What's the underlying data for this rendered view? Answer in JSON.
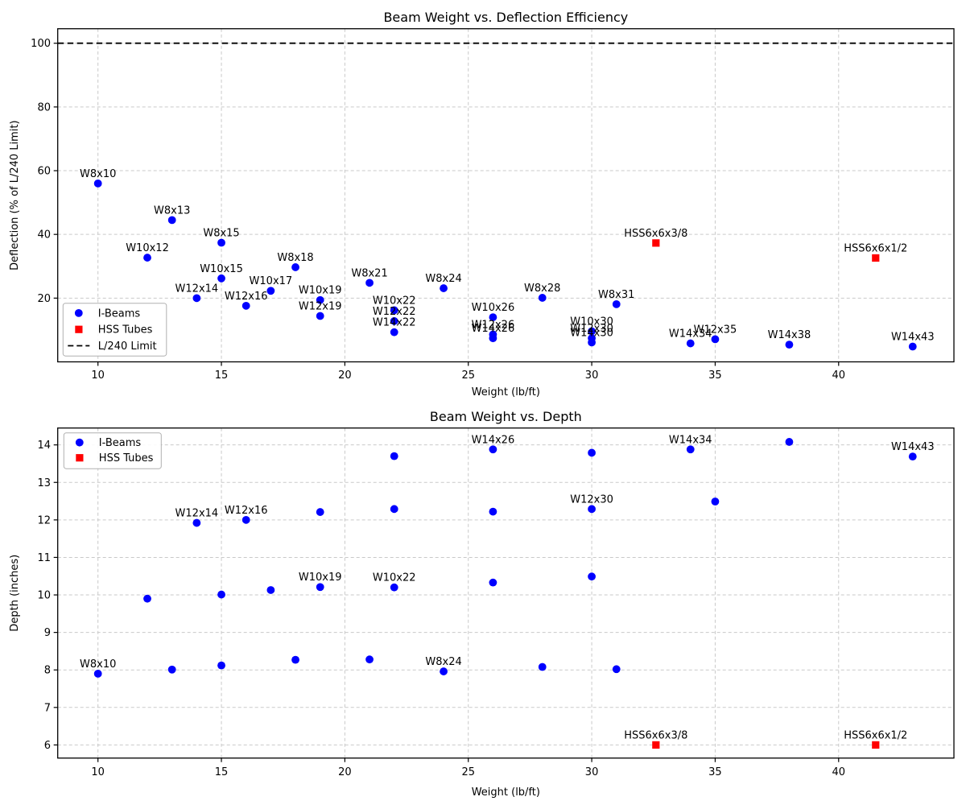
{
  "figure": {
    "background": "#ffffff"
  },
  "colors": {
    "ibeam": "#0000ff",
    "hss": "#ff0000",
    "limit_line": "#000000",
    "grid": "#c9c9c9",
    "spine": "#000000",
    "legend_border": "#b0b0b0",
    "text": "#000000"
  },
  "chart_data": [
    {
      "type": "scatter",
      "title": "Beam Weight vs. Deflection Efficiency",
      "xlabel": "Weight (lb/ft)",
      "ylabel": "Deflection (% of L/240 Limit)",
      "xlim": [
        8.37,
        44.67
      ],
      "ylim": [
        0,
        104.55
      ],
      "xticks": [
        10,
        15,
        20,
        25,
        30,
        35,
        40
      ],
      "yticks": [
        20,
        40,
        60,
        80,
        100
      ],
      "grid": true,
      "limit_line": {
        "y": 100,
        "label": "L/240 Limit",
        "style": "dashed",
        "color": "#000000"
      },
      "legend": {
        "position": "lower-left",
        "items": [
          {
            "label": "I-Beams",
            "marker": "circle",
            "color": "#0000ff"
          },
          {
            "label": "HSS Tubes",
            "marker": "square",
            "color": "#ff0000"
          },
          {
            "label": "L/240 Limit",
            "marker": "dashed-line",
            "color": "#000000"
          }
        ]
      },
      "series": [
        {
          "name": "I-Beams",
          "marker": "circle",
          "color": "#0000ff",
          "points": [
            {
              "label": "W8x10",
              "x": 10,
              "y": 56.0,
              "labeled": true
            },
            {
              "label": "W8x13",
              "x": 13,
              "y": 44.5,
              "labeled": true
            },
            {
              "label": "W8x15",
              "x": 15,
              "y": 37.4,
              "labeled": true
            },
            {
              "label": "W8x18",
              "x": 18,
              "y": 29.7,
              "labeled": true
            },
            {
              "label": "W8x21",
              "x": 21,
              "y": 24.8,
              "labeled": true
            },
            {
              "label": "W8x24",
              "x": 24,
              "y": 23.1,
              "labeled": true
            },
            {
              "label": "W8x28",
              "x": 28,
              "y": 20.1,
              "labeled": true
            },
            {
              "label": "W8x31",
              "x": 31,
              "y": 18.1,
              "labeled": true
            },
            {
              "label": "W10x12",
              "x": 12,
              "y": 32.7,
              "labeled": true
            },
            {
              "label": "W10x15",
              "x": 15,
              "y": 26.2,
              "labeled": true
            },
            {
              "label": "W10x17",
              "x": 17,
              "y": 22.3,
              "labeled": true
            },
            {
              "label": "W10x19",
              "x": 19,
              "y": 19.4,
              "labeled": true
            },
            {
              "label": "W10x22",
              "x": 22,
              "y": 16.2,
              "labeled": true
            },
            {
              "label": "W10x26",
              "x": 26,
              "y": 14.0,
              "labeled": true
            },
            {
              "label": "W10x30",
              "x": 30,
              "y": 9.6,
              "labeled": true
            },
            {
              "label": "W12x14",
              "x": 14,
              "y": 20.0,
              "labeled": true
            },
            {
              "label": "W12x16",
              "x": 16,
              "y": 17.6,
              "labeled": true
            },
            {
              "label": "W12x19",
              "x": 19,
              "y": 14.4,
              "labeled": true
            },
            {
              "label": "W12x22",
              "x": 22,
              "y": 12.8,
              "labeled": true
            },
            {
              "label": "W12x26",
              "x": 26,
              "y": 8.6,
              "labeled": true
            },
            {
              "label": "W12x30",
              "x": 30,
              "y": 7.4,
              "labeled": true
            },
            {
              "label": "W12x35",
              "x": 35,
              "y": 7.1,
              "labeled": true
            },
            {
              "label": "W14x22",
              "x": 22,
              "y": 9.3,
              "labeled": true
            },
            {
              "label": "W14x26",
              "x": 26,
              "y": 7.4,
              "labeled": true
            },
            {
              "label": "W14x30",
              "x": 30,
              "y": 6.1,
              "labeled": true
            },
            {
              "label": "W14x34",
              "x": 34,
              "y": 5.8,
              "labeled": true
            },
            {
              "label": "W14x38",
              "x": 38,
              "y": 5.4,
              "labeled": true
            },
            {
              "label": "W14x43",
              "x": 43,
              "y": 4.8,
              "labeled": true
            }
          ]
        },
        {
          "name": "HSS Tubes",
          "marker": "square",
          "color": "#ff0000",
          "points": [
            {
              "label": "HSS6x6x3/8",
              "x": 32.6,
              "y": 37.3,
              "labeled": true
            },
            {
              "label": "HSS6x6x1/2",
              "x": 41.5,
              "y": 32.6,
              "labeled": true
            }
          ]
        }
      ]
    },
    {
      "type": "scatter",
      "title": "Beam Weight vs. Depth",
      "xlabel": "Weight (lb/ft)",
      "ylabel": "Depth (inches)",
      "xlim": [
        8.37,
        44.67
      ],
      "ylim": [
        5.65,
        14.45
      ],
      "xticks": [
        10,
        15,
        20,
        25,
        30,
        35,
        40
      ],
      "yticks": [
        6,
        7,
        8,
        9,
        10,
        11,
        12,
        13,
        14
      ],
      "grid": true,
      "legend": {
        "position": "upper-left",
        "items": [
          {
            "label": "I-Beams",
            "marker": "circle",
            "color": "#0000ff"
          },
          {
            "label": "HSS Tubes",
            "marker": "square",
            "color": "#ff0000"
          }
        ]
      },
      "series": [
        {
          "name": "I-Beams",
          "marker": "circle",
          "color": "#0000ff",
          "points": [
            {
              "label": "W8x10",
              "x": 10,
              "y": 7.9,
              "labeled": true
            },
            {
              "label": "W8x13",
              "x": 13,
              "y": 8.01,
              "labeled": false
            },
            {
              "label": "W8x15",
              "x": 15,
              "y": 8.12,
              "labeled": false
            },
            {
              "label": "W8x18",
              "x": 18,
              "y": 8.27,
              "labeled": false
            },
            {
              "label": "W8x21",
              "x": 21,
              "y": 8.28,
              "labeled": false
            },
            {
              "label": "W8x24",
              "x": 24,
              "y": 7.96,
              "labeled": true
            },
            {
              "label": "W8x28",
              "x": 28,
              "y": 8.08,
              "labeled": false
            },
            {
              "label": "W8x31",
              "x": 31,
              "y": 8.02,
              "labeled": false
            },
            {
              "label": "W10x12",
              "x": 12,
              "y": 9.9,
              "labeled": false
            },
            {
              "label": "W10x15",
              "x": 15,
              "y": 10.01,
              "labeled": false
            },
            {
              "label": "W10x17",
              "x": 17,
              "y": 10.13,
              "labeled": false
            },
            {
              "label": "W10x19",
              "x": 19,
              "y": 10.21,
              "labeled": true
            },
            {
              "label": "W10x22",
              "x": 22,
              "y": 10.2,
              "labeled": true
            },
            {
              "label": "W10x26",
              "x": 26,
              "y": 10.33,
              "labeled": false
            },
            {
              "label": "W10x30",
              "x": 30,
              "y": 10.49,
              "labeled": false
            },
            {
              "label": "W12x14",
              "x": 14,
              "y": 11.92,
              "labeled": true
            },
            {
              "label": "W12x16",
              "x": 16,
              "y": 12.0,
              "labeled": true
            },
            {
              "label": "W12x19",
              "x": 19,
              "y": 12.21,
              "labeled": false
            },
            {
              "label": "W12x22",
              "x": 22,
              "y": 12.29,
              "labeled": false
            },
            {
              "label": "W12x26",
              "x": 26,
              "y": 12.22,
              "labeled": false
            },
            {
              "label": "W12x30",
              "x": 30,
              "y": 12.29,
              "labeled": true
            },
            {
              "label": "W12x35",
              "x": 35,
              "y": 12.49,
              "labeled": false
            },
            {
              "label": "W14x22",
              "x": 22,
              "y": 13.7,
              "labeled": false
            },
            {
              "label": "W14x26",
              "x": 26,
              "y": 13.88,
              "labeled": true
            },
            {
              "label": "W14x30",
              "x": 30,
              "y": 13.79,
              "labeled": false
            },
            {
              "label": "W14x34",
              "x": 34,
              "y": 13.88,
              "labeled": true
            },
            {
              "label": "W14x38",
              "x": 38,
              "y": 14.08,
              "labeled": false
            },
            {
              "label": "W14x43",
              "x": 43,
              "y": 13.69,
              "labeled": true
            }
          ]
        },
        {
          "name": "HSS Tubes",
          "marker": "square",
          "color": "#ff0000",
          "points": [
            {
              "label": "HSS6x6x3/8",
              "x": 32.6,
              "y": 6.0,
              "labeled": true
            },
            {
              "label": "HSS6x6x1/2",
              "x": 41.5,
              "y": 6.0,
              "labeled": true
            }
          ]
        }
      ]
    }
  ]
}
